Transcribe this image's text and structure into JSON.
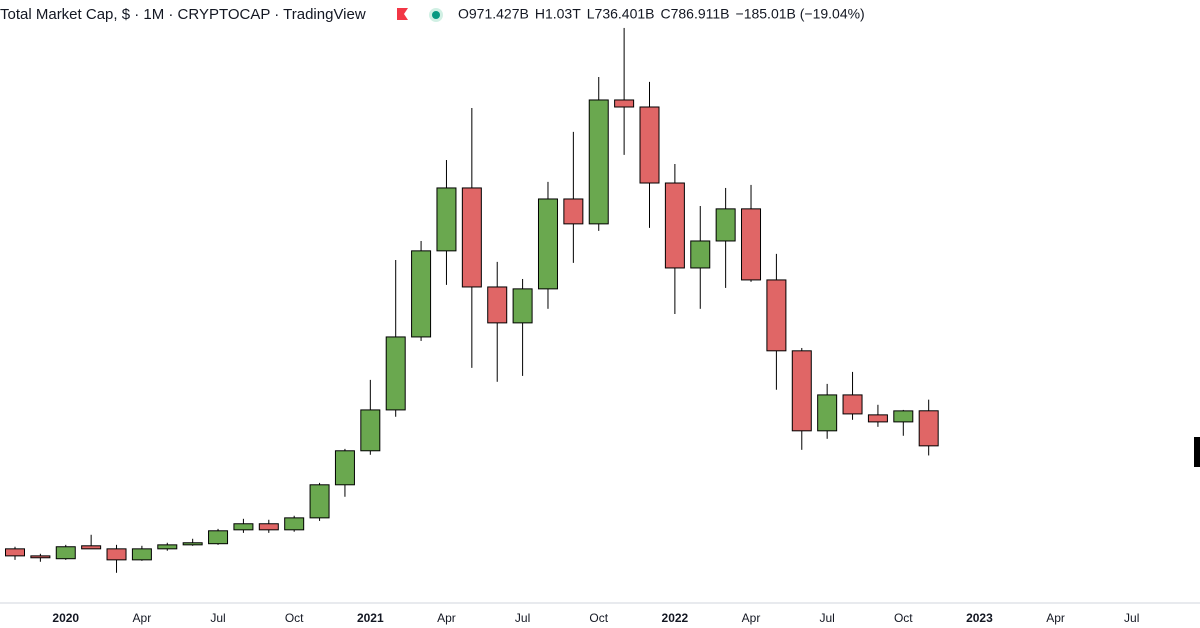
{
  "chart_data": {
    "type": "candlestick",
    "title": "Total Market Cap, $ · 1M · CRYPTOCAP · TradingView",
    "ohlc_labels": [
      "O971.427B",
      "H1.03T",
      "L736.401B",
      "C786.911B",
      "−185.01B (−19.04%)"
    ],
    "up_color": "#6aa84f",
    "down_color": "#e06666",
    "ylim": [
      -40,
      3133
    ],
    "categories": [
      null,
      null,
      "2020",
      null,
      null,
      "Apr",
      null,
      null,
      "Jul",
      null,
      null,
      "Oct",
      null,
      null,
      "2021",
      null,
      null,
      "Apr",
      null,
      null,
      "Jul",
      null,
      null,
      "Oct",
      null,
      null,
      "2022",
      null,
      null,
      "Apr",
      null,
      null,
      "Jul",
      null,
      null,
      "Oct",
      null,
      null,
      "2023",
      null,
      null,
      "Apr",
      null,
      null,
      "Jul"
    ],
    "open": [
      245,
      208,
      193,
      261,
      245,
      187,
      245,
      266,
      272,
      345,
      377,
      345,
      408,
      582,
      761,
      976,
      1360,
      1813,
      2144,
      1623,
      1434,
      1613,
      2086,
      1955,
      2607,
      2570,
      2170,
      1723,
      1865,
      2034,
      1660,
      1287,
      866,
      1055,
      950,
      913,
      971.427,
      null,
      null,
      null,
      null,
      null,
      null,
      null,
      null
    ],
    "high": [
      256,
      219,
      266,
      319,
      266,
      261,
      277,
      298,
      350,
      403,
      398,
      419,
      592,
      771,
      1134,
      1765,
      1865,
      2291,
      2565,
      1755,
      1665,
      2176,
      2439,
      2728,
      2986,
      2702,
      2270,
      2049,
      2144,
      2160,
      1797,
      1302,
      1113,
      1176,
      1003,
      976,
      1030,
      null,
      null,
      null,
      null,
      null,
      null,
      null,
      null
    ],
    "low": [
      187,
      177,
      187,
      245,
      119,
      182,
      235,
      261,
      266,
      329,
      329,
      335,
      392,
      519,
      740,
      940,
      1339,
      1634,
      1197,
      1124,
      1155,
      1508,
      1750,
      1918,
      2318,
      1934,
      1481,
      1508,
      1618,
      1650,
      1082,
      766,
      824,
      924,
      887,
      840,
      736.401,
      null,
      null,
      null,
      null,
      null,
      null,
      null,
      null
    ],
    "close": [
      208,
      198,
      256,
      245,
      187,
      245,
      266,
      277,
      340,
      377,
      345,
      408,
      582,
      761,
      976,
      1360,
      1813,
      2144,
      1623,
      1434,
      1613,
      2086,
      1955,
      2607,
      2570,
      2170,
      1723,
      1865,
      2034,
      1660,
      1287,
      866,
      1055,
      955,
      913,
      971,
      786.911,
      null,
      null,
      null,
      null,
      null,
      null,
      null,
      null
    ]
  }
}
